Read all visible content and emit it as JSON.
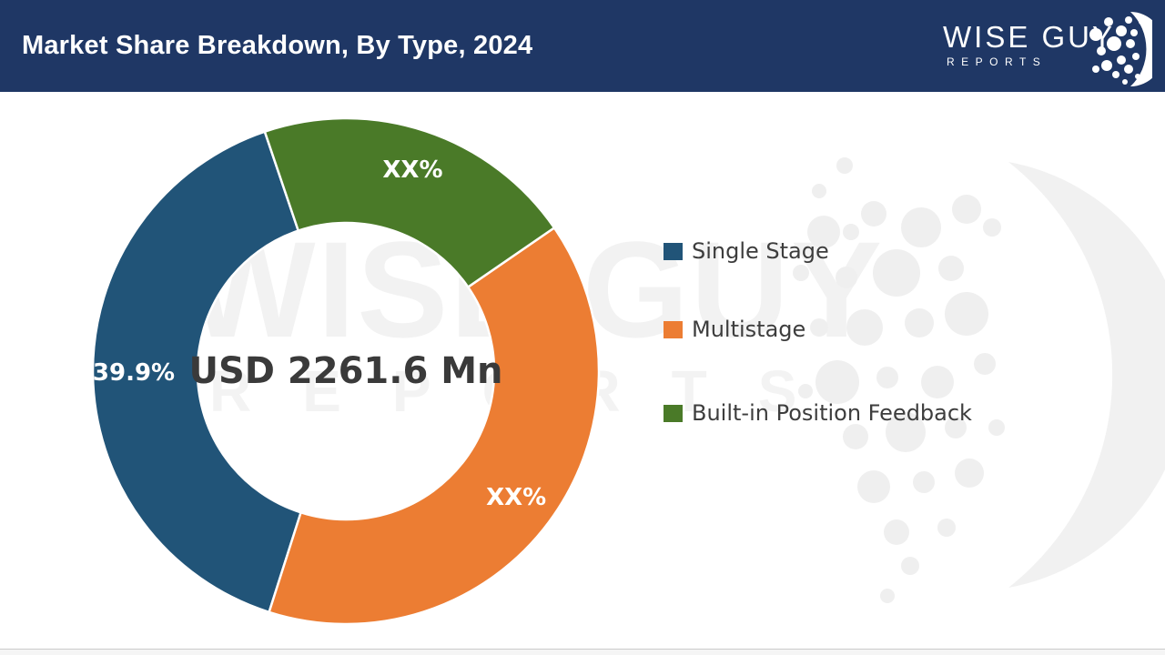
{
  "header": {
    "title": "Market Share Breakdown, By Type, 2024",
    "bg_color": "#1f3765",
    "logo": {
      "line1": "WISE GUY",
      "line2": "REPORTS"
    }
  },
  "chart_data": {
    "type": "pie",
    "donut": true,
    "title": "Market Share Breakdown, By Type, 2024",
    "center_label": "USD 2261.6 Mn",
    "start_angle_deg": 108.7,
    "direction": "counterclockwise",
    "legend_position": "right",
    "segments": [
      {
        "name": "Single Stage",
        "label": "39.9%",
        "value_pct": 39.9,
        "color": "#215478"
      },
      {
        "name": "Multistage",
        "label": "XX%",
        "value_pct": 39.5,
        "color": "#ec7d33"
      },
      {
        "name": "Built-in Position Feedback",
        "label": "XX%",
        "value_pct": 20.6,
        "color": "#4a7a28"
      }
    ]
  },
  "watermark": {
    "line1": "WISE GUY",
    "line2": "REPORTS"
  },
  "colors": {
    "header_navy": "#1f3765",
    "center_text": "#3a3a3a",
    "legend_text": "#3d3d3d"
  }
}
